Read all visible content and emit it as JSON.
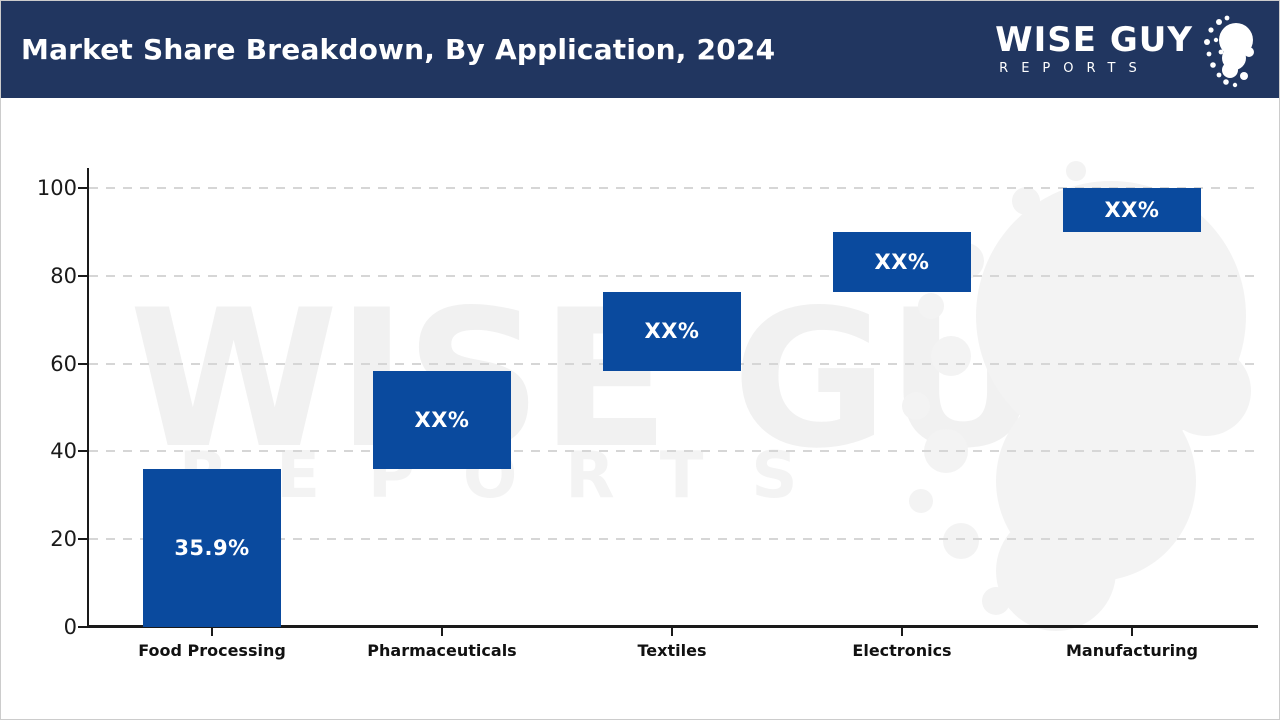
{
  "header": {
    "title": "Market Share Breakdown, By Application, 2024",
    "logo": {
      "line1": "WISE GUY",
      "line2": "REPORTS"
    }
  },
  "watermark": {
    "line1": "WISE GUY",
    "line2": "REPORTS"
  },
  "chart_data": {
    "type": "bar",
    "subtype": "waterfall",
    "title": "Market Share Breakdown, By Application, 2024",
    "categories": [
      "Food Processing",
      "Pharmaceuticals",
      "Textiles",
      "Electronics",
      "Manufacturing"
    ],
    "segments": [
      {
        "category": "Food Processing",
        "start": 0,
        "end": 35.9,
        "label": "35.9%"
      },
      {
        "category": "Pharmaceuticals",
        "start": 35.9,
        "end": 58.4,
        "label": "XX%"
      },
      {
        "category": "Textiles",
        "start": 58.4,
        "end": 76.4,
        "label": "XX%"
      },
      {
        "category": "Electronics",
        "start": 76.4,
        "end": 90.0,
        "label": "XX%"
      },
      {
        "category": "Manufacturing",
        "start": 90.0,
        "end": 100.0,
        "label": "XX%"
      }
    ],
    "yticks": [
      0,
      20,
      40,
      60,
      80,
      100
    ],
    "ylim": [
      0,
      104
    ],
    "xlabel": "",
    "ylabel": "",
    "bar_color": "#0a4a9e",
    "grid": "horizontal-dashed",
    "legend": "none"
  }
}
